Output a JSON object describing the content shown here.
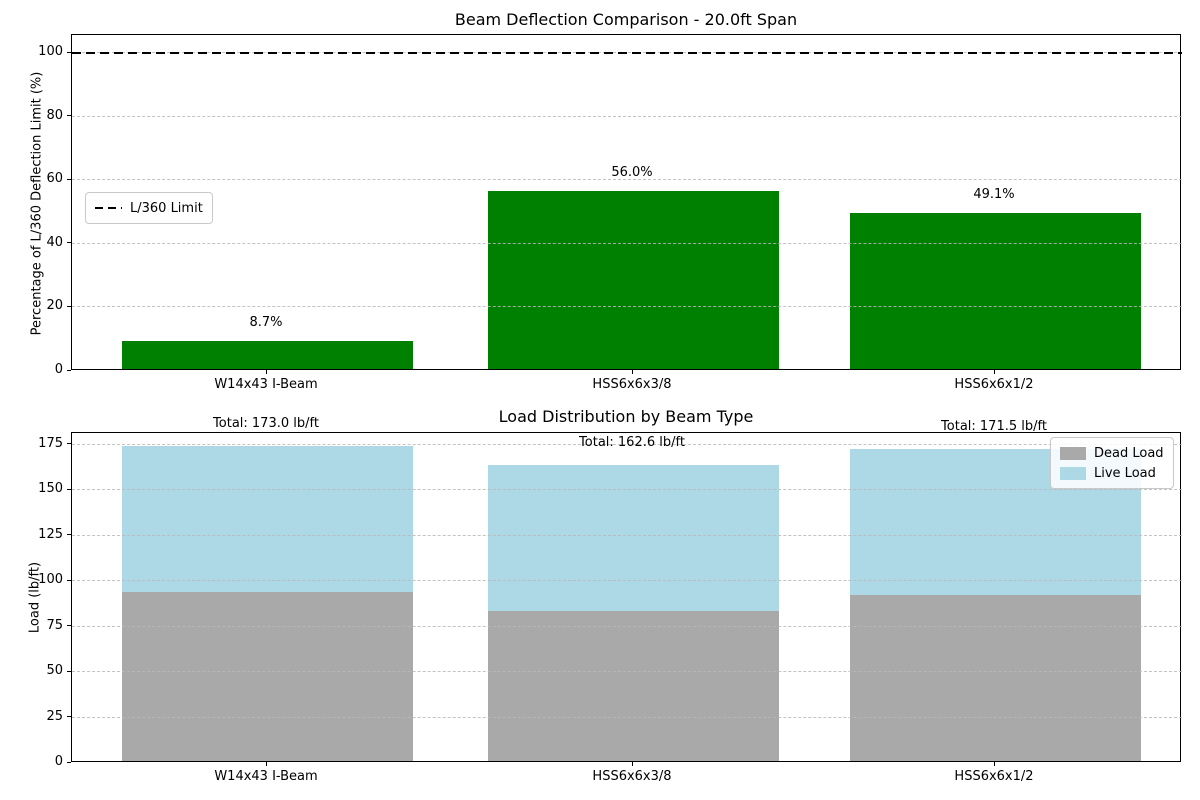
{
  "chart_data": [
    {
      "type": "bar",
      "title": "Beam Deflection Comparison - 20.0ft Span",
      "ylabel": "Percentage of L/360 Deflection Limit (%)",
      "xlabel": "",
      "categories": [
        "W14x43 I-Beam",
        "HSS6x6x3/8",
        "HSS6x6x1/2"
      ],
      "values": [
        8.7,
        56.0,
        49.1
      ],
      "value_labels": [
        "8.7%",
        "56.0%",
        "49.1%"
      ],
      "bar_color": "#008000",
      "yticks": [
        0,
        20,
        40,
        60,
        80,
        100
      ],
      "ylim": [
        0,
        105.8
      ],
      "grid": true,
      "ref_line": {
        "value": 100,
        "label": "L/360 Limit",
        "color": "#000000",
        "style": "dashed"
      },
      "legend_position": "center left"
    },
    {
      "type": "bar",
      "stacked": true,
      "title": "Load Distribution by Beam Type",
      "ylabel": "Load (lb/ft)",
      "xlabel": "",
      "categories": [
        "W14x43 I-Beam",
        "HSS6x6x3/8",
        "HSS6x6x1/2"
      ],
      "series": [
        {
          "name": "Dead Load",
          "color": "#a9a9a9",
          "values": [
            93.0,
            82.6,
            91.5
          ]
        },
        {
          "name": "Live Load",
          "color": "#add8e6",
          "values": [
            80.0,
            80.0,
            80.0
          ]
        }
      ],
      "totals": [
        173.0,
        162.6,
        171.5
      ],
      "total_labels": [
        "Total: 173.0 lb/ft",
        "Total: 162.6 lb/ft",
        "Total: 171.5 lb/ft"
      ],
      "yticks": [
        0,
        25,
        50,
        75,
        100,
        125,
        150,
        175
      ],
      "ylim": [
        0,
        181.5
      ],
      "grid": true,
      "legend_position": "upper right"
    }
  ]
}
